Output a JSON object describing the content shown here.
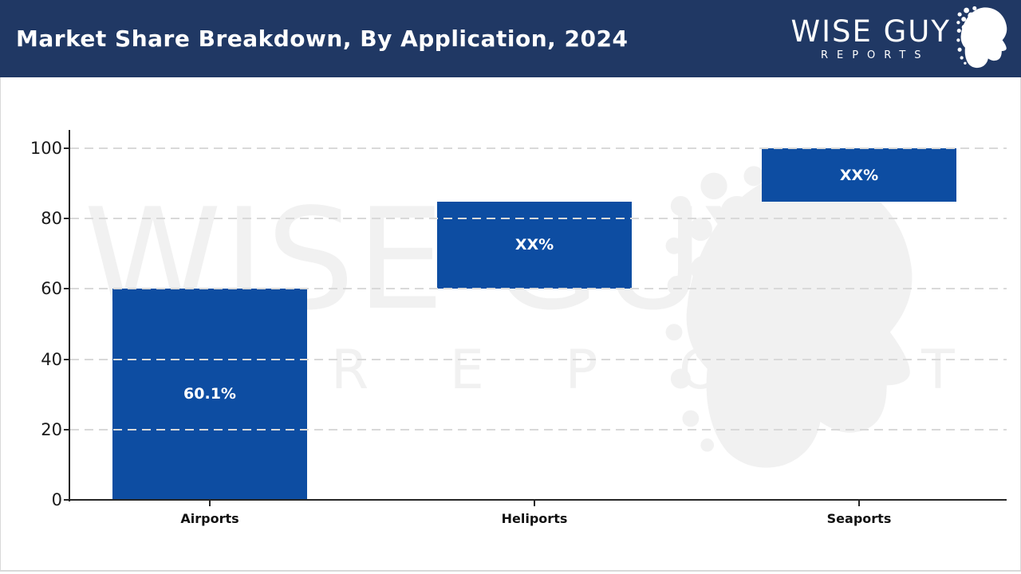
{
  "header": {
    "title": "Market Share Breakdown, By Application, 2024",
    "logo": {
      "name": "WISE GUY",
      "sub": "REPORTS"
    }
  },
  "watermark": {
    "line1": "WISE GUY",
    "line2": "R E P O R T S"
  },
  "colors": {
    "header_bg": "#203864",
    "page_bg": "#ffffff",
    "card_border": "#d9d9d9",
    "bar_blue": "#0d4da2",
    "grid_gray": "#d9d9d9",
    "axis_black": "#262626"
  },
  "chart_data": {
    "type": "bar",
    "subtype": "waterfall",
    "title": "Market Share Breakdown, By Application, 2024",
    "categories": [
      "Airports",
      "Heliports",
      "Seaports"
    ],
    "segments": [
      {
        "category": "Airports",
        "start": 0,
        "end": 60.1,
        "label": "60.1%"
      },
      {
        "category": "Heliports",
        "start": 60.1,
        "end": 84.8,
        "label": "XX%"
      },
      {
        "category": "Seaports",
        "start": 84.8,
        "end": 100,
        "label": "XX%"
      }
    ],
    "xlabel": "",
    "ylabel": "",
    "yticks": [
      0,
      20,
      40,
      60,
      80,
      100
    ],
    "ylim": [
      0,
      105.5
    ],
    "grid": {
      "axis": "y",
      "style": "dashed",
      "color": "#d9d9d9",
      "drawn_over_bars": true
    },
    "legend": null,
    "bar_color": "#0d4da2",
    "bar_label_color": "#ffffff"
  }
}
